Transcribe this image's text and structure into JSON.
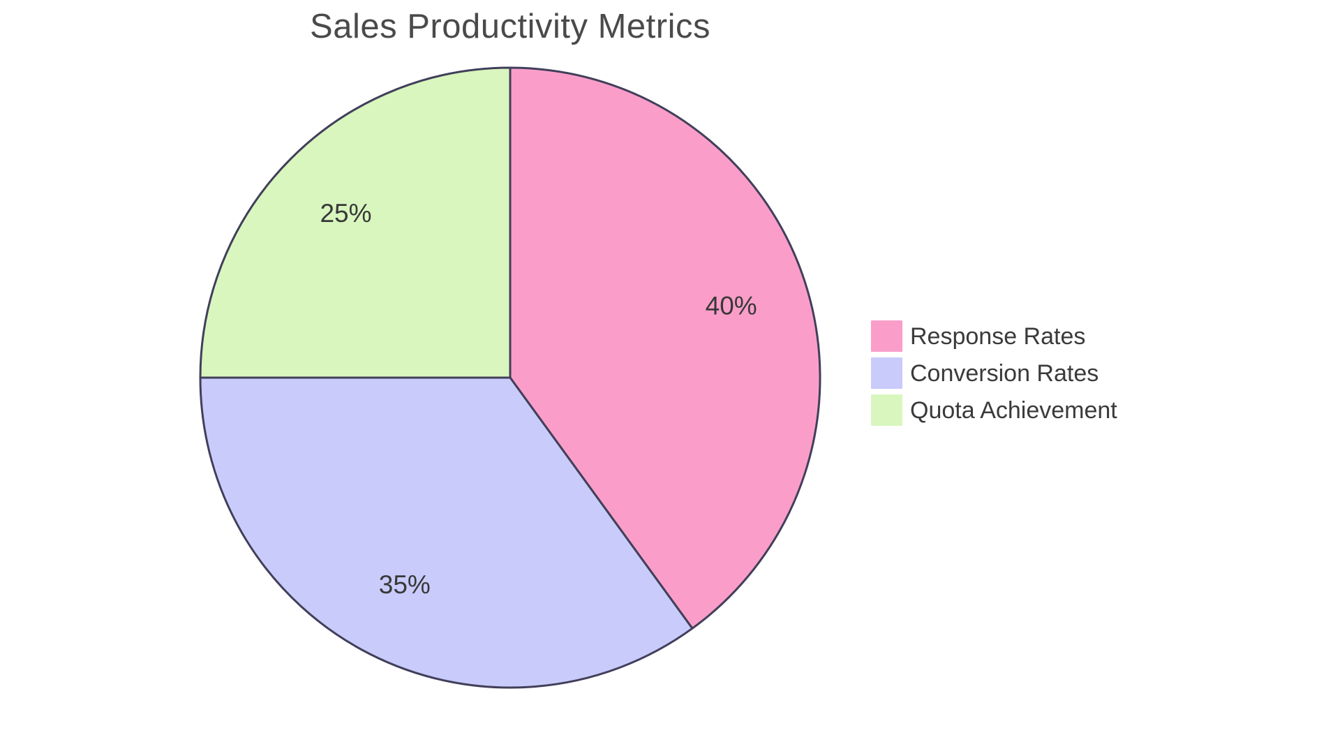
{
  "chart_data": {
    "type": "pie",
    "title": "Sales Productivity Metrics",
    "categories": [
      "Response Rates",
      "Conversion Rates",
      "Quota Achievement"
    ],
    "values": [
      40,
      35,
      25
    ],
    "slice_labels": [
      "40%",
      "35%",
      "25%"
    ],
    "colors": [
      "#FA9EC9",
      "#C9CBFB",
      "#D8F6BE"
    ],
    "border_color": "#413F5A",
    "title_color": "#4A4A4A",
    "slice_label_color": "#383838",
    "legend_text_color": "#3A3A3A",
    "background": "#FFFFFF",
    "start_angle": "top",
    "direction": "clockwise",
    "legend_position": "right",
    "grid": "off"
  }
}
